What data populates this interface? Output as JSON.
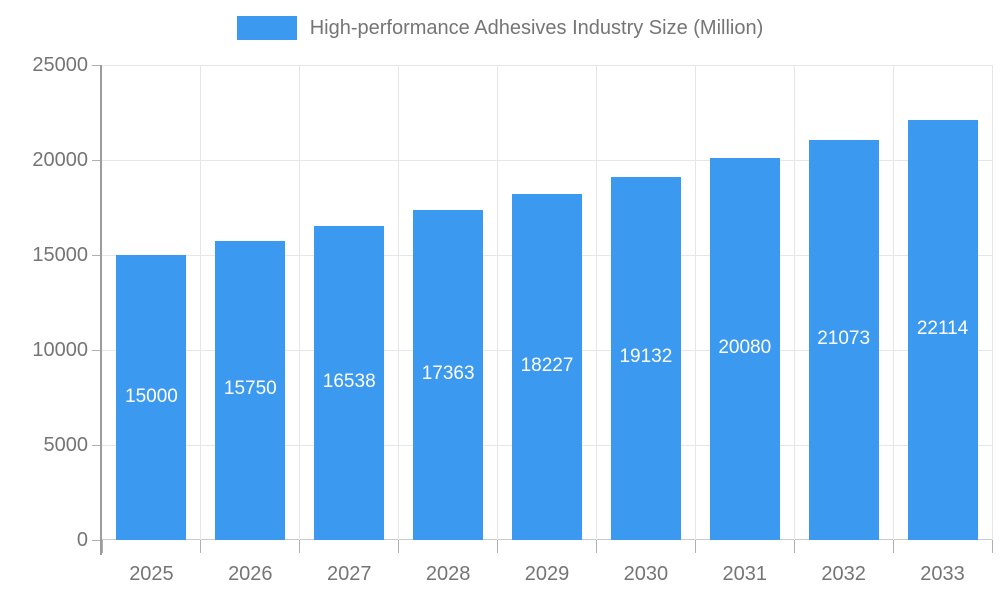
{
  "chart_data": {
    "type": "bar",
    "series_name": "High-performance Adhesives Industry Size (Million)",
    "categories": [
      "2025",
      "2026",
      "2027",
      "2028",
      "2029",
      "2030",
      "2031",
      "2032",
      "2033"
    ],
    "values": [
      15000,
      15750,
      16538,
      17363,
      18227,
      19132,
      20080,
      21073,
      22114
    ],
    "value_labels": [
      "15000",
      "15750",
      "16538",
      "17363",
      "18227",
      "19132",
      "20080",
      "21073",
      "22114"
    ],
    "ylim": [
      0,
      25000
    ],
    "yticks": [
      0,
      5000,
      10000,
      15000,
      20000,
      25000
    ],
    "ytick_labels": [
      "0",
      "5000",
      "10000",
      "15000",
      "20000",
      "25000"
    ],
    "legend_position": "top",
    "grid": "both",
    "value_label_position": "center-inside",
    "colors": {
      "bar": "#3B99F0",
      "grid": "#e6e6e6",
      "baseline": "#cccccc",
      "axis": "#9b9b9b",
      "tick": "#b0b0b0",
      "text": "#757575",
      "value_text": "#ffffff",
      "background": "#ffffff"
    }
  }
}
